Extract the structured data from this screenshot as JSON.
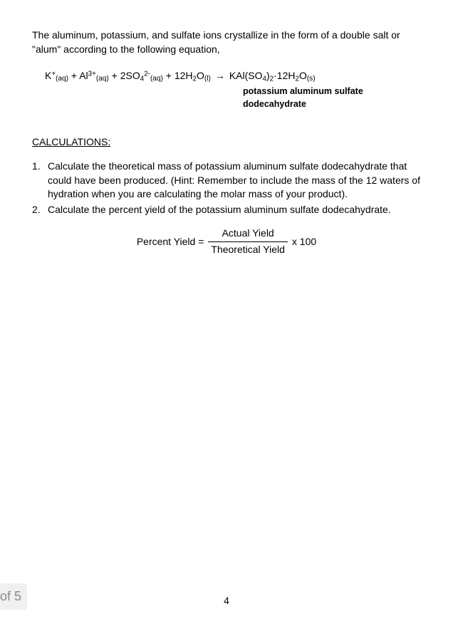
{
  "intro": "The aluminum, potassium, and sulfate ions crystallize in the form of a double salt or \"alum\" according to the following equation,",
  "eq": {
    "r1_species": "K",
    "r1_charge": "+",
    "r1_state": "(aq)",
    "plus1": " + ",
    "r2_species": "Al",
    "r2_charge": "3+",
    "r2_state": "(aq)",
    "plus2": " + ",
    "r3_coeff": "2",
    "r3_species": "SO",
    "r3_sub": "4",
    "r3_charge": "2-",
    "r3_state": "(aq)",
    "plus3": " + ",
    "r4_coeff": "12",
    "r4_h": "H",
    "r4_h2": "2",
    "r4_o": "O",
    "r4_state": "(l)",
    "arrow": "→",
    "p_species": "KAl(SO",
    "p_so4_sub": "4",
    "p_close": ")",
    "p_paren_sub": "2",
    "p_dot": "·",
    "p_hcoeff": "12",
    "p_h": "H",
    "p_h2": "2",
    "p_o": "O",
    "p_state": "(s)"
  },
  "eq_label": "potassium aluminum sulfate dodecahydrate",
  "section_heading": "CALCULATIONS:",
  "calc": {
    "n1": "1.",
    "t1": "Calculate the theoretical mass of potassium aluminum sulfate dodecahydrate that could have been produced.  (Hint:  Remember to include the mass of the 12 waters of hydration when you are calculating the molar mass of your product).",
    "n2": "2.",
    "t2": "Calculate the percent yield of the potassium aluminum sulfate dodecahydrate."
  },
  "formula": {
    "left": "Percent Yield =",
    "top": "Actual Yield",
    "bot": "Theoretical Yield",
    "right": "x 100"
  },
  "page_number": "4",
  "page_indicator": "of 5"
}
